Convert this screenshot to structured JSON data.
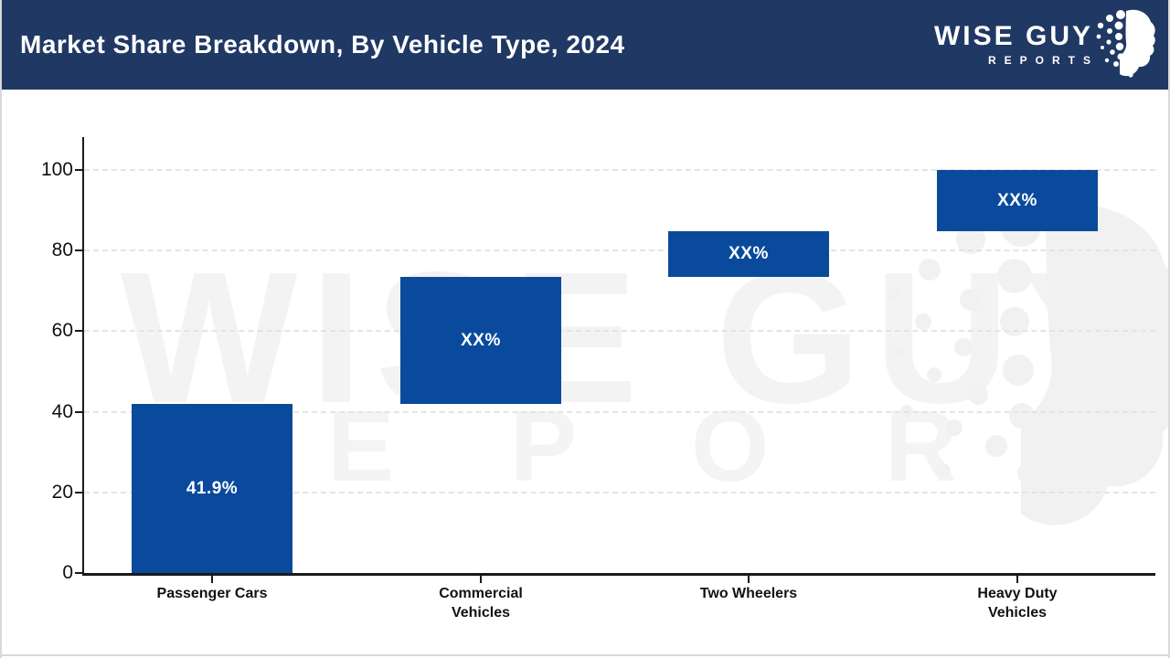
{
  "header": {
    "title": "Market Share Breakdown, By Vehicle Type, 2024",
    "logo": {
      "line1": "WISE GUY",
      "line2": "REPORTS"
    }
  },
  "watermark": {
    "line1": "WISE GUY",
    "line2": "REPORTS"
  },
  "colors": {
    "header_navy": "#203864",
    "bar_blue": "#0a4a9c",
    "grid": "#e4e4e4",
    "axis": "#1a1a1a",
    "watermark_gray": "#f3f3f3"
  },
  "chart_data": {
    "type": "bar",
    "subtype": "waterfall",
    "title": "Market Share Breakdown, By Vehicle Type, 2024",
    "xlabel": "",
    "ylabel": "",
    "ylim": [
      0,
      100
    ],
    "yticks": [
      0,
      20,
      40,
      60,
      80,
      100
    ],
    "grid": "dashed-horizontal",
    "legend": "none",
    "categories": [
      "Passenger Cars",
      "Commercial Vehicles",
      "Two Wheelers",
      "Heavy Duty Vehicles"
    ],
    "category_label_lines": [
      "Passenger Cars",
      "Commercial\nVehicles",
      "Two Wheelers",
      "Heavy Duty\nVehicles"
    ],
    "segments": [
      {
        "category": "Passenger Cars",
        "start": 0,
        "end": 41.9,
        "value": 41.9,
        "value_label": "41.9%"
      },
      {
        "category": "Commercial Vehicles",
        "start": 41.9,
        "end": 73.5,
        "value": 31.6,
        "value_label": "XX%"
      },
      {
        "category": "Two Wheelers",
        "start": 73.5,
        "end": 84.8,
        "value": 11.3,
        "value_label": "XX%"
      },
      {
        "category": "Heavy Duty Vehicles",
        "start": 84.8,
        "end": 100,
        "value": 15.2,
        "value_label": "XX%"
      }
    ]
  }
}
